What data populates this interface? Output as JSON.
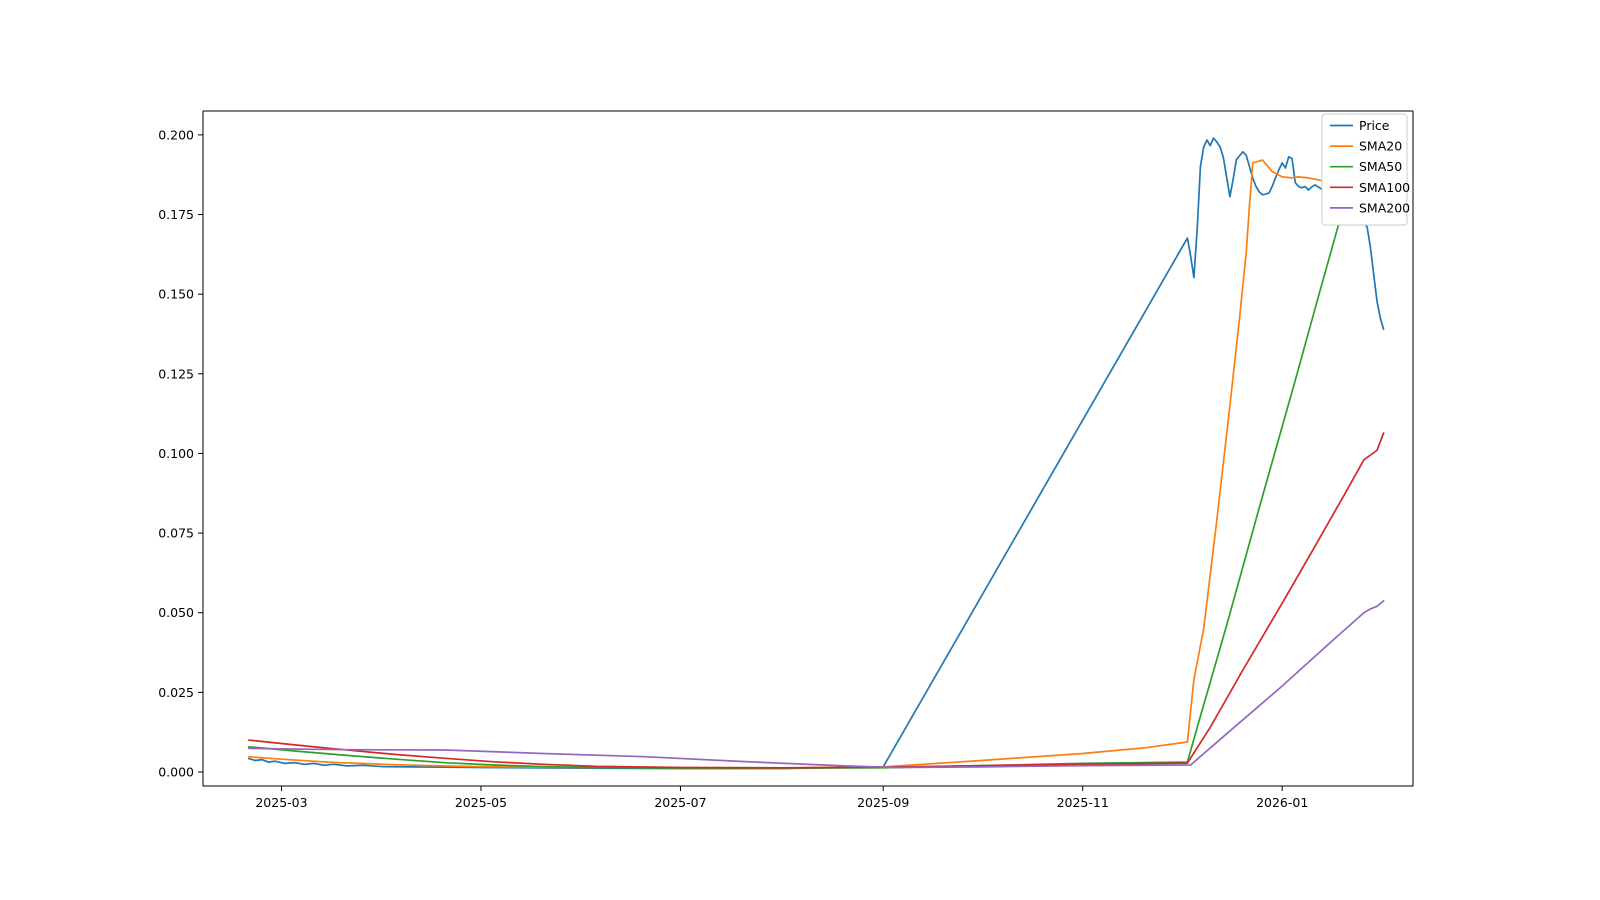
{
  "figure": {
    "background": "#ffffff",
    "title": ""
  },
  "chart_data": {
    "type": "line",
    "title": "",
    "xlabel": "",
    "ylabel": "",
    "grid": false,
    "legend_position": "upper right",
    "xlim": [
      "2025-02-05",
      "2026-02-10"
    ],
    "ylim": [
      -0.0044,
      0.2075
    ],
    "x_ticks": [
      {
        "label": "2025-03",
        "date": "2025-03-01"
      },
      {
        "label": "2025-05",
        "date": "2025-05-01"
      },
      {
        "label": "2025-07",
        "date": "2025-07-01"
      },
      {
        "label": "2025-09",
        "date": "2025-09-01"
      },
      {
        "label": "2025-11",
        "date": "2025-11-01"
      },
      {
        "label": "2026-01",
        "date": "2026-01-01"
      }
    ],
    "y_ticks": [
      {
        "label": "0.000",
        "value": 0.0
      },
      {
        "label": "0.025",
        "value": 0.025
      },
      {
        "label": "0.050",
        "value": 0.05
      },
      {
        "label": "0.075",
        "value": 0.075
      },
      {
        "label": "0.100",
        "value": 0.1
      },
      {
        "label": "0.125",
        "value": 0.125
      },
      {
        "label": "0.150",
        "value": 0.15
      },
      {
        "label": "0.175",
        "value": 0.175
      },
      {
        "label": "0.200",
        "value": 0.2
      }
    ],
    "series": [
      {
        "name": "Price",
        "color": "#1f77b4",
        "points": [
          [
            "2025-02-19",
            0.0042
          ],
          [
            "2025-02-21",
            0.0036
          ],
          [
            "2025-02-23",
            0.0039
          ],
          [
            "2025-02-25",
            0.0031
          ],
          [
            "2025-02-27",
            0.0034
          ],
          [
            "2025-03-02",
            0.0027
          ],
          [
            "2025-03-05",
            0.0029
          ],
          [
            "2025-03-08",
            0.0024
          ],
          [
            "2025-03-11",
            0.0027
          ],
          [
            "2025-03-14",
            0.0021
          ],
          [
            "2025-03-17",
            0.0024
          ],
          [
            "2025-03-21",
            0.0019
          ],
          [
            "2025-03-26",
            0.0021
          ],
          [
            "2025-04-01",
            0.0017
          ],
          [
            "2025-04-10",
            0.0016
          ],
          [
            "2025-04-20",
            0.0015
          ],
          [
            "2025-05-01",
            0.0014
          ],
          [
            "2025-05-15",
            0.0013
          ],
          [
            "2025-06-01",
            0.0012
          ],
          [
            "2025-07-01",
            0.0011
          ],
          [
            "2025-08-01",
            0.0011
          ],
          [
            "2025-09-01",
            0.0016
          ],
          [
            "2025-12-03",
            0.1676
          ],
          [
            "2025-12-04",
            0.162
          ],
          [
            "2025-12-05",
            0.1552
          ],
          [
            "2025-12-06",
            0.1705
          ],
          [
            "2025-12-07",
            0.19
          ],
          [
            "2025-12-08",
            0.1962
          ],
          [
            "2025-12-09",
            0.1984
          ],
          [
            "2025-12-10",
            0.1966
          ],
          [
            "2025-12-11",
            0.199
          ],
          [
            "2025-12-12",
            0.1978
          ],
          [
            "2025-12-13",
            0.1962
          ],
          [
            "2025-12-14",
            0.193
          ],
          [
            "2025-12-15",
            0.1868
          ],
          [
            "2025-12-16",
            0.1806
          ],
          [
            "2025-12-17",
            0.186
          ],
          [
            "2025-12-18",
            0.1922
          ],
          [
            "2025-12-19",
            0.1935
          ],
          [
            "2025-12-20",
            0.1947
          ],
          [
            "2025-12-21",
            0.1936
          ],
          [
            "2025-12-22",
            0.19
          ],
          [
            "2025-12-23",
            0.1864
          ],
          [
            "2025-12-24",
            0.1838
          ],
          [
            "2025-12-25",
            0.1821
          ],
          [
            "2025-12-26",
            0.1812
          ],
          [
            "2025-12-27",
            0.1814
          ],
          [
            "2025-12-28",
            0.1818
          ],
          [
            "2025-12-29",
            0.184
          ],
          [
            "2025-12-30",
            0.1866
          ],
          [
            "2025-12-31",
            0.189
          ],
          [
            "2026-01-01",
            0.1912
          ],
          [
            "2026-01-02",
            0.1896
          ],
          [
            "2026-01-03",
            0.1931
          ],
          [
            "2026-01-04",
            0.1926
          ],
          [
            "2026-01-05",
            0.185
          ],
          [
            "2026-01-06",
            0.1838
          ],
          [
            "2026-01-07",
            0.1834
          ],
          [
            "2026-01-08",
            0.1838
          ],
          [
            "2026-01-09",
            0.1827
          ],
          [
            "2026-01-10",
            0.1836
          ],
          [
            "2026-01-11",
            0.1843
          ],
          [
            "2026-01-12",
            0.1837
          ],
          [
            "2026-01-13",
            0.183
          ],
          [
            "2026-01-14",
            0.1821
          ],
          [
            "2026-01-15",
            0.1806
          ],
          [
            "2026-01-17",
            0.1795
          ],
          [
            "2026-01-19",
            0.1782
          ],
          [
            "2026-01-21",
            0.1772
          ],
          [
            "2026-01-23",
            0.1762
          ],
          [
            "2026-01-25",
            0.1738
          ],
          [
            "2026-01-27",
            0.171
          ],
          [
            "2026-01-28",
            0.1645
          ],
          [
            "2026-01-29",
            0.156
          ],
          [
            "2026-01-30",
            0.1478
          ],
          [
            "2026-01-31",
            0.1425
          ],
          [
            "2026-02-01",
            0.139
          ]
        ]
      },
      {
        "name": "SMA20",
        "color": "#ff7f0e",
        "points": [
          [
            "2025-02-19",
            0.0048
          ],
          [
            "2025-03-01",
            0.004
          ],
          [
            "2025-03-15",
            0.0031
          ],
          [
            "2025-04-01",
            0.0024
          ],
          [
            "2025-04-15",
            0.002
          ],
          [
            "2025-05-01",
            0.0017
          ],
          [
            "2025-06-01",
            0.0014
          ],
          [
            "2025-07-01",
            0.0013
          ],
          [
            "2025-08-01",
            0.0013
          ],
          [
            "2025-09-01",
            0.0016
          ],
          [
            "2025-10-01",
            0.0036
          ],
          [
            "2025-11-01",
            0.0058
          ],
          [
            "2025-11-20",
            0.0076
          ],
          [
            "2025-12-03",
            0.0094
          ],
          [
            "2025-12-05",
            0.029
          ],
          [
            "2025-12-08",
            0.045
          ],
          [
            "2025-12-12",
            0.079
          ],
          [
            "2025-12-16",
            0.115
          ],
          [
            "2025-12-19",
            0.143
          ],
          [
            "2025-12-21",
            0.163
          ],
          [
            "2025-12-22",
            0.178
          ],
          [
            "2025-12-23",
            0.1912
          ],
          [
            "2025-12-26",
            0.1921
          ],
          [
            "2025-12-29",
            0.1884
          ],
          [
            "2026-01-01",
            0.1868
          ],
          [
            "2026-01-04",
            0.1865
          ],
          [
            "2026-01-06",
            0.1868
          ],
          [
            "2026-01-09",
            0.1865
          ],
          [
            "2026-01-12",
            0.1859
          ],
          [
            "2026-01-16",
            0.1849
          ],
          [
            "2026-01-20",
            0.1843
          ],
          [
            "2026-01-25",
            0.184
          ],
          [
            "2026-02-01",
            0.1837
          ]
        ]
      },
      {
        "name": "SMA50",
        "color": "#2ca02c",
        "points": [
          [
            "2025-02-19",
            0.0079
          ],
          [
            "2025-03-05",
            0.0066
          ],
          [
            "2025-03-20",
            0.0053
          ],
          [
            "2025-04-05",
            0.004
          ],
          [
            "2025-04-20",
            0.0029
          ],
          [
            "2025-05-05",
            0.0022
          ],
          [
            "2025-05-20",
            0.0017
          ],
          [
            "2025-06-05",
            0.0014
          ],
          [
            "2025-07-01",
            0.0012
          ],
          [
            "2025-08-01",
            0.0012
          ],
          [
            "2025-09-01",
            0.0013
          ],
          [
            "2025-10-01",
            0.002
          ],
          [
            "2025-11-01",
            0.0027
          ],
          [
            "2025-12-03",
            0.0031
          ],
          [
            "2025-12-06",
            0.014
          ],
          [
            "2025-12-15",
            0.046
          ],
          [
            "2025-12-25",
            0.083
          ],
          [
            "2026-01-05",
            0.123
          ],
          [
            "2026-01-12",
            0.149
          ],
          [
            "2026-01-18",
            0.171
          ],
          [
            "2026-01-24",
            0.187
          ],
          [
            "2026-02-01",
            0.195
          ]
        ]
      },
      {
        "name": "SMA100",
        "color": "#d62728",
        "points": [
          [
            "2025-02-19",
            0.01
          ],
          [
            "2025-03-05",
            0.0085
          ],
          [
            "2025-03-20",
            0.007
          ],
          [
            "2025-04-05",
            0.0055
          ],
          [
            "2025-04-20",
            0.0043
          ],
          [
            "2025-05-05",
            0.0032
          ],
          [
            "2025-05-20",
            0.0024
          ],
          [
            "2025-06-05",
            0.0018
          ],
          [
            "2025-07-01",
            0.0014
          ],
          [
            "2025-08-01",
            0.0013
          ],
          [
            "2025-09-01",
            0.0015
          ],
          [
            "2025-10-15",
            0.0022
          ],
          [
            "2025-12-03",
            0.0028
          ],
          [
            "2025-12-10",
            0.014
          ],
          [
            "2025-12-20",
            0.032
          ],
          [
            "2026-01-01",
            0.053
          ],
          [
            "2026-01-10",
            0.069
          ],
          [
            "2026-01-20",
            0.087
          ],
          [
            "2026-01-26",
            0.098
          ],
          [
            "2026-01-28",
            0.0995
          ],
          [
            "2026-01-30",
            0.101
          ],
          [
            "2026-02-01",
            0.1064
          ]
        ]
      },
      {
        "name": "SMA200",
        "color": "#9467bd",
        "points": [
          [
            "2025-02-19",
            0.0074
          ],
          [
            "2025-03-20",
            0.007
          ],
          [
            "2025-04-20",
            0.0069
          ],
          [
            "2025-05-20",
            0.0058
          ],
          [
            "2025-06-20",
            0.0048
          ],
          [
            "2025-07-20",
            0.0033
          ],
          [
            "2025-08-20",
            0.0019
          ],
          [
            "2025-09-05",
            0.0014
          ],
          [
            "2025-10-01",
            0.0016
          ],
          [
            "2025-11-01",
            0.002
          ],
          [
            "2025-12-04",
            0.0022
          ],
          [
            "2025-12-15",
            0.012
          ],
          [
            "2026-01-01",
            0.027
          ],
          [
            "2026-01-15",
            0.04
          ],
          [
            "2026-01-26",
            0.05
          ],
          [
            "2026-01-28",
            0.0512
          ],
          [
            "2026-01-30",
            0.052
          ],
          [
            "2026-02-01",
            0.0537
          ]
        ]
      }
    ],
    "legend_entries": [
      "Price",
      "SMA20",
      "SMA50",
      "SMA100",
      "SMA200"
    ]
  },
  "style_colors": {
    "spine": "#000000",
    "tick_text": "#000000",
    "legend_border": "#cccccc",
    "legend_background": "#ffffff"
  }
}
